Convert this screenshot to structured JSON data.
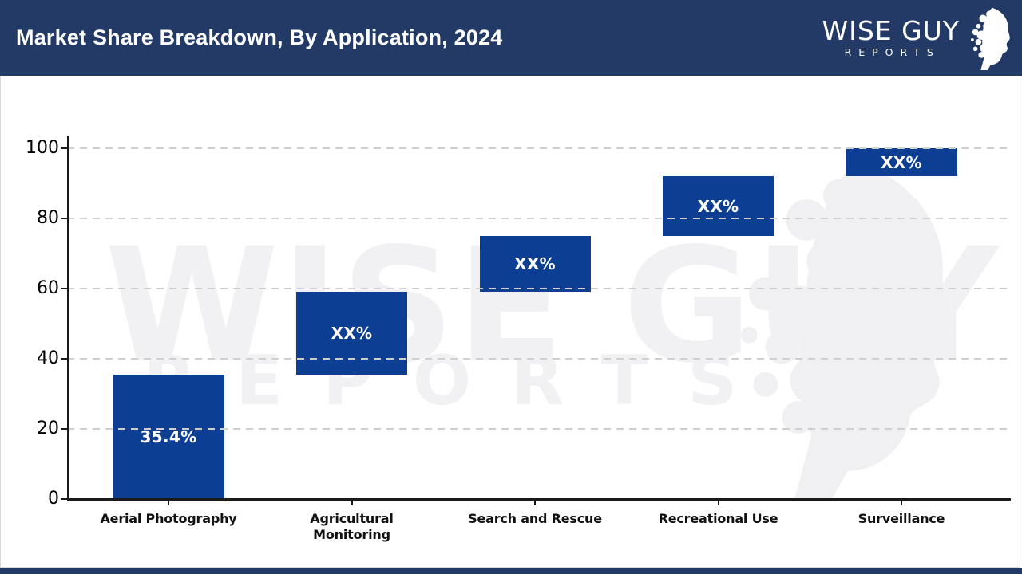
{
  "header": {
    "title": "Market Share Breakdown, By Application, 2024",
    "logo": {
      "line1": "WISE GUY",
      "line2": "REPORTS"
    }
  },
  "watermark": {
    "line1": "WISE GUY",
    "line2": "REPORTS"
  },
  "colors": {
    "header_bg": "#243a66",
    "footer_bg": "#243a66",
    "bar": "#0c3e94",
    "bar_label": "#ffffff",
    "grid": "#cfcfcf",
    "axis": "#1a1a1a",
    "watermark": "#f1f1f4",
    "background": "#ffffff"
  },
  "chart_data": {
    "type": "bar",
    "subtype": "floating-waterfall-percent",
    "title": "Market Share Breakdown, By Application, 2024",
    "xlabel": "",
    "ylabel": "",
    "ylim": [
      0,
      104
    ],
    "yticks": [
      0,
      20,
      40,
      60,
      80,
      100
    ],
    "grid": "horizontal-dashed",
    "legend": "none",
    "categories": [
      "Aerial Photography",
      "Agricultural Monitoring",
      "Search and Rescue",
      "Recreational Use",
      "Surveillance"
    ],
    "bars": [
      {
        "category": "Aerial Photography",
        "start": 0,
        "end": 35.4,
        "label": "35.4%",
        "tick_lines": [
          "Aerial Photography"
        ]
      },
      {
        "category": "Agricultural Monitoring",
        "start": 35.4,
        "end": 59,
        "label": "XX%",
        "tick_lines": [
          "Agricultural",
          "Monitoring"
        ]
      },
      {
        "category": "Search and Rescue",
        "start": 59,
        "end": 75,
        "label": "XX%",
        "tick_lines": [
          "Search and Rescue"
        ]
      },
      {
        "category": "Recreational Use",
        "start": 75,
        "end": 92,
        "label": "XX%",
        "tick_lines": [
          "Recreational Use"
        ]
      },
      {
        "category": "Surveillance",
        "start": 92,
        "end": 100,
        "label": "XX%",
        "tick_lines": [
          "Surveillance"
        ]
      }
    ]
  }
}
